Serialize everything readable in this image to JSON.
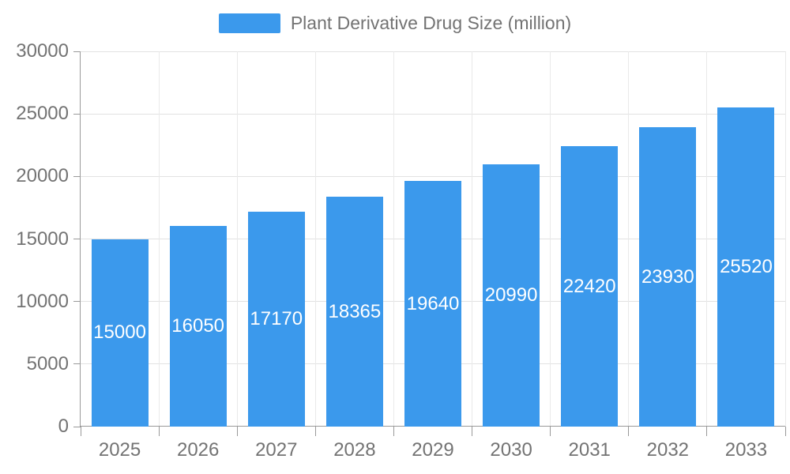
{
  "chart_data": {
    "type": "bar",
    "title": "",
    "series_name": "Plant Derivative Drug Size (million)",
    "categories": [
      "2025",
      "2026",
      "2027",
      "2028",
      "2029",
      "2030",
      "2031",
      "2032",
      "2033"
    ],
    "values": [
      15000,
      16050,
      17170,
      18365,
      19640,
      20990,
      22420,
      23930,
      25520
    ],
    "xlabel": "",
    "ylabel": "",
    "ylim": [
      0,
      30000
    ],
    "yticks": [
      0,
      5000,
      10000,
      15000,
      20000,
      25000,
      30000
    ],
    "grid": "on",
    "legend_position": "top-center",
    "bar_label_position": "inside-center",
    "colors": {
      "bar": "#3B99EC",
      "bar_label": "#FFFFFF",
      "axis_label": "#737373",
      "grid_line": "#E2E2E2",
      "grid_line_vertical": "#E9E9E9",
      "axis_line": "#999999",
      "background": "#FFFFFF"
    }
  }
}
